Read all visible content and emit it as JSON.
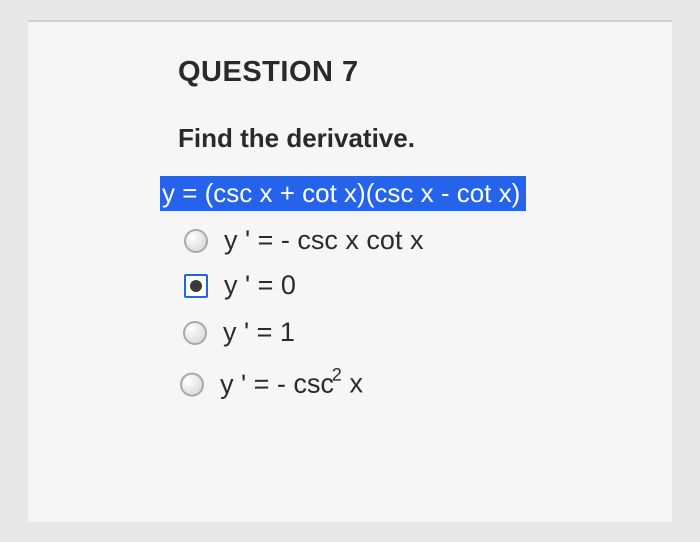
{
  "question": {
    "title": "QUESTION 7",
    "prompt": "Find the derivative.",
    "equation": "y = (csc x + cot x)(csc x - cot x)",
    "highlight_bg": "#2563eb",
    "highlight_fg": "#ffffff"
  },
  "options": [
    {
      "label": "y ' = - csc x cot x",
      "selected": false
    },
    {
      "label": "y ' = 0",
      "selected": true
    },
    {
      "label": "y ' = 1",
      "selected": false
    },
    {
      "label": "y ' = - csc² x",
      "selected": false,
      "has_sup": true,
      "pre": "y ' = - csc",
      "sup": "2",
      "post": " x"
    }
  ],
  "colors": {
    "page_bg": "#e8e8e8",
    "panel_bg": "#f6f6f6",
    "text": "#2a2a2a",
    "radio_border": "#a9a9a9",
    "selected_border": "#2563eb"
  }
}
